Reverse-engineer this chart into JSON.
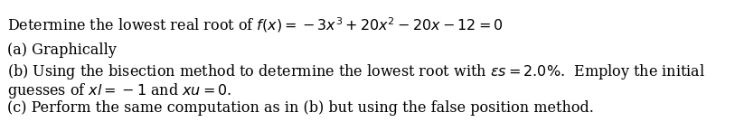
{
  "title_line": "Determine the lowest real root of $f(x) = -3x^3 + 20x^2 - 20x - 12 = 0$",
  "line_a": "(a) Graphically",
  "line_b1": "(b) Using the bisection method to determine the lowest root with $\\epsilon s = 2.0\\%$.  Employ the initial",
  "line_b2": "guesses of $xl = -1$ and $xu = 0$.",
  "line_c": "(c) Perform the same computation as in (b) but using the false position method.",
  "text_color": "#000000",
  "background_color": "#ffffff",
  "font_size": 11.5,
  "fig_width": 8.13,
  "fig_height": 1.35,
  "dpi": 100
}
